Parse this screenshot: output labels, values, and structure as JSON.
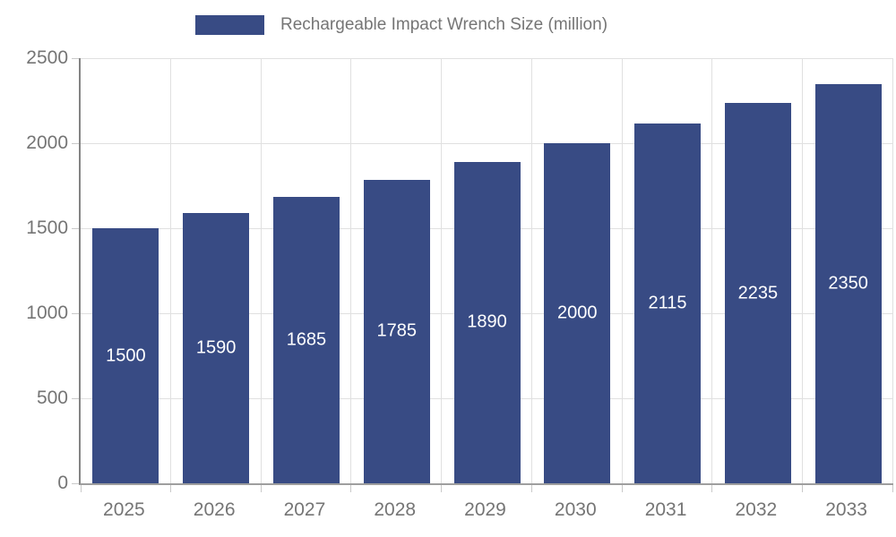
{
  "legend": {
    "label": "Rechargeable Impact Wrench Size (million)"
  },
  "chart_data": {
    "type": "bar",
    "title": "",
    "categories": [
      "2025",
      "2026",
      "2027",
      "2028",
      "2029",
      "2030",
      "2031",
      "2032",
      "2033"
    ],
    "values": [
      1500,
      1590,
      1685,
      1785,
      1890,
      2000,
      2115,
      2235,
      2350
    ],
    "series_name": "Rechargeable Impact Wrench Size (million)",
    "xlabel": "",
    "ylabel": "",
    "ylim": [
      0,
      2500
    ],
    "yticks": [
      0,
      500,
      1000,
      1500,
      2000,
      2500
    ],
    "grid": true,
    "legend_position": "top",
    "bar_labels_inside": true
  },
  "colors": {
    "bar": "#384B84",
    "bar_label": "#ffffff",
    "axis_text": "#757575",
    "gridline": "#e0e0e0",
    "legend_text": "#757575"
  }
}
